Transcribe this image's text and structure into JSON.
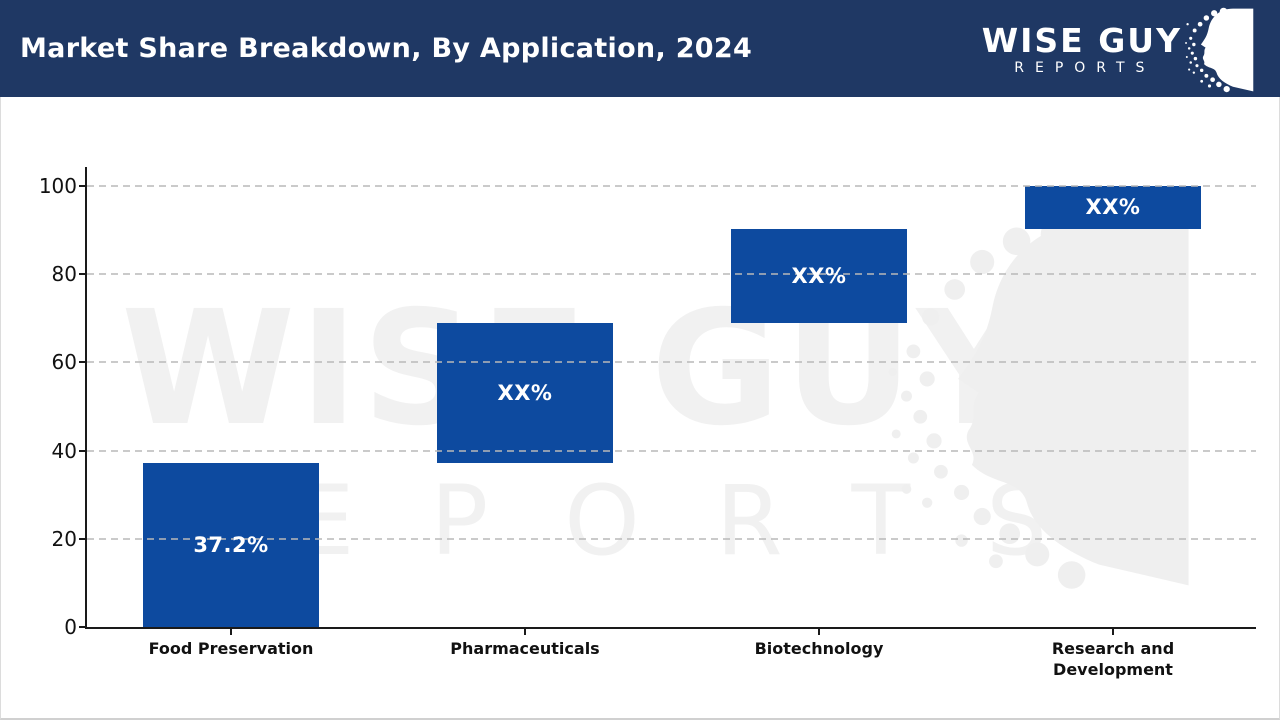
{
  "header": {
    "title": "Market Share Breakdown, By Application, 2024",
    "logo": {
      "line1": "WISE GUY",
      "line2": "REPORTS"
    }
  },
  "watermark": {
    "line1": "WISE GUY",
    "line2": "REPORTS"
  },
  "colors": {
    "header_bg": "#1f3864",
    "bar": "#0d4a9f",
    "gridline": "#d9d9d9",
    "axis": "#1a1a1a",
    "watermark": "#f0f0f0",
    "bar_label_text": "#ffffff"
  },
  "chart_data": {
    "type": "bar",
    "subtype": "waterfall",
    "title": "Market Share Breakdown, By Application, 2024",
    "categories": [
      "Food Preservation",
      "Pharmaceuticals",
      "Biotechnology",
      "Research and\nDevelopment"
    ],
    "segments": [
      {
        "category": "Food Preservation",
        "start": 0,
        "end": 37.2,
        "label": "37.2%"
      },
      {
        "category": "Pharmaceuticals",
        "start": 37.2,
        "end": 69,
        "label": "XX%"
      },
      {
        "category": "Biotechnology",
        "start": 69,
        "end": 90.3,
        "label": "XX%"
      },
      {
        "category": "Research and\nDevelopment",
        "start": 90.3,
        "end": 100,
        "label": "XX%"
      }
    ],
    "xlabel": "",
    "ylabel": "",
    "yticks": [
      0,
      20,
      40,
      60,
      80,
      100
    ],
    "ylim": [
      0,
      100
    ],
    "grid": "dashed-horizontal",
    "legend": "none"
  }
}
